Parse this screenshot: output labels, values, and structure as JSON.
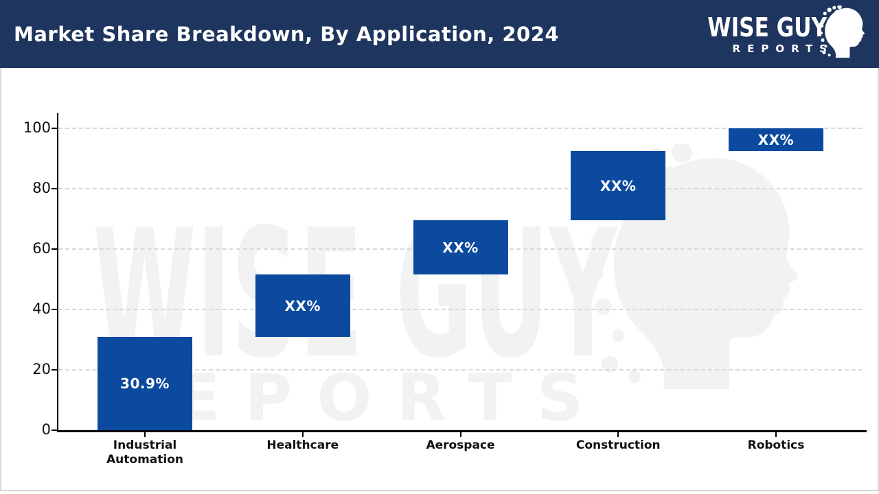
{
  "header": {
    "title": "Market Share Breakdown, By Application, 2024",
    "logo": {
      "line1": "WISE GUY",
      "line2": "REPORTS"
    }
  },
  "watermark": {
    "line1": "WISE GUY",
    "line2": "REPORTS"
  },
  "colors": {
    "header_bg": "#1e355f",
    "bar_fill": "#0c4aa0",
    "bar_label": "#ffffff",
    "gridline": "#d8d8d8",
    "axis": "#000000",
    "watermark": "#f2f2f2"
  },
  "chart_data": {
    "type": "bar",
    "subtype": "waterfall",
    "title": "Market Share Breakdown, By Application, 2024",
    "xlabel": "",
    "ylabel": "",
    "ylim": [
      0,
      100
    ],
    "yticks": [
      0,
      20,
      40,
      60,
      80,
      100
    ],
    "grid": "horizontal dashed",
    "legend": "none",
    "categories": [
      "Industrial Automation",
      "Healthcare",
      "Aerospace",
      "Construction",
      "Robotics"
    ],
    "bars": [
      {
        "category": "Industrial Automation",
        "start": 0,
        "end": 30.9,
        "label": "30.9%"
      },
      {
        "category": "Healthcare",
        "start": 30.9,
        "end": 51.5,
        "label": "XX%"
      },
      {
        "category": "Aerospace",
        "start": 51.5,
        "end": 69.5,
        "label": "XX%"
      },
      {
        "category": "Construction",
        "start": 69.5,
        "end": 92.5,
        "label": "XX%"
      },
      {
        "category": "Robotics",
        "start": 92.5,
        "end": 100,
        "label": "XX%"
      }
    ]
  }
}
